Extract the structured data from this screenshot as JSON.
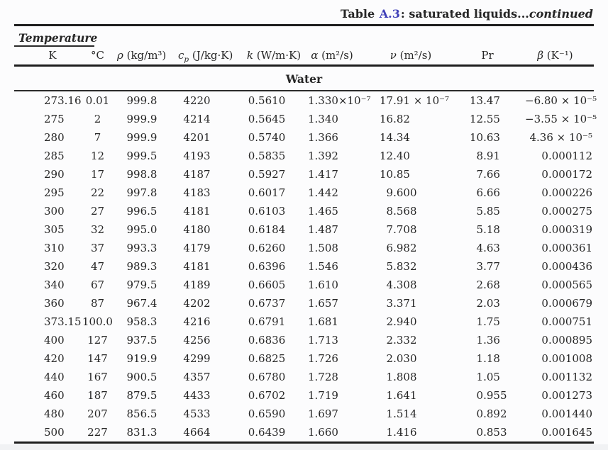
{
  "page": {
    "title": {
      "prefix": "Table",
      "ref": "A.3",
      "mid": ": saturated liquids...",
      "suffix": "continued"
    },
    "colors": {
      "link": "#4040b8",
      "text": "#262626",
      "rule": "#1e1e1e",
      "background": "#fcfcfd"
    }
  },
  "table": {
    "temperature_group_label": "Temperature",
    "columns": [
      {
        "label": "K"
      },
      {
        "label": "°C"
      },
      {
        "sym": "ρ",
        "unit": "(kg/m³)"
      },
      {
        "sym": "c",
        "sub": "p",
        "unit": "(J/kg·K)"
      },
      {
        "sym": "k",
        "unit": "(W/m·K)"
      },
      {
        "sym": "α",
        "unit": "(m²/s)"
      },
      {
        "sym": "ν",
        "unit": "(m²/s)"
      },
      {
        "label": "Pr"
      },
      {
        "sym": "β",
        "unit": "(K⁻¹)"
      }
    ],
    "section_label": "Water",
    "rows": [
      [
        "273.16",
        "0.01",
        "999.8",
        "4220",
        "0.5610",
        "1.330×10⁻⁷",
        "17.91 × 10⁻⁷",
        "13.47",
        "−6.80 × 10⁻⁵"
      ],
      [
        "275",
        "2",
        "999.9",
        "4214",
        "0.5645",
        "1.340",
        "16.82",
        "12.55",
        "−3.55 × 10⁻⁵"
      ],
      [
        "280",
        "7",
        "999.9",
        "4201",
        "0.5740",
        "1.366",
        "14.34",
        "10.63",
        "4.36 × 10⁻⁵"
      ],
      [
        "285",
        "12",
        "999.5",
        "4193",
        "0.5835",
        "1.392",
        "12.40",
        "8.91",
        "0.000112"
      ],
      [
        "290",
        "17",
        "998.8",
        "4187",
        "0.5927",
        "1.417",
        "10.85",
        "7.66",
        "0.000172"
      ],
      [
        "295",
        "22",
        "997.8",
        "4183",
        "0.6017",
        "1.442",
        "9.600",
        "6.66",
        "0.000226"
      ],
      [
        "300",
        "27",
        "996.5",
        "4181",
        "0.6103",
        "1.465",
        "8.568",
        "5.85",
        "0.000275"
      ],
      [
        "305",
        "32",
        "995.0",
        "4180",
        "0.6184",
        "1.487",
        "7.708",
        "5.18",
        "0.000319"
      ],
      [
        "310",
        "37",
        "993.3",
        "4179",
        "0.6260",
        "1.508",
        "6.982",
        "4.63",
        "0.000361"
      ],
      [
        "320",
        "47",
        "989.3",
        "4181",
        "0.6396",
        "1.546",
        "5.832",
        "3.77",
        "0.000436"
      ],
      [
        "340",
        "67",
        "979.5",
        "4189",
        "0.6605",
        "1.610",
        "4.308",
        "2.68",
        "0.000565"
      ],
      [
        "360",
        "87",
        "967.4",
        "4202",
        "0.6737",
        "1.657",
        "3.371",
        "2.03",
        "0.000679"
      ],
      [
        "373.15",
        "100.0",
        "958.3",
        "4216",
        "0.6791",
        "1.681",
        "2.940",
        "1.75",
        "0.000751"
      ],
      [
        "400",
        "127",
        "937.5",
        "4256",
        "0.6836",
        "1.713",
        "2.332",
        "1.36",
        "0.000895"
      ],
      [
        "420",
        "147",
        "919.9",
        "4299",
        "0.6825",
        "1.726",
        "2.030",
        "1.18",
        "0.001008"
      ],
      [
        "440",
        "167",
        "900.5",
        "4357",
        "0.6780",
        "1.728",
        "1.808",
        "1.05",
        "0.001132"
      ],
      [
        "460",
        "187",
        "879.5",
        "4433",
        "0.6702",
        "1.719",
        "1.641",
        "0.955",
        "0.001273"
      ],
      [
        "480",
        "207",
        "856.5",
        "4533",
        "0.6590",
        "1.697",
        "1.514",
        "0.892",
        "0.001440"
      ],
      [
        "500",
        "227",
        "831.3",
        "4664",
        "0.6439",
        "1.660",
        "1.416",
        "0.853",
        "0.001645"
      ]
    ]
  }
}
